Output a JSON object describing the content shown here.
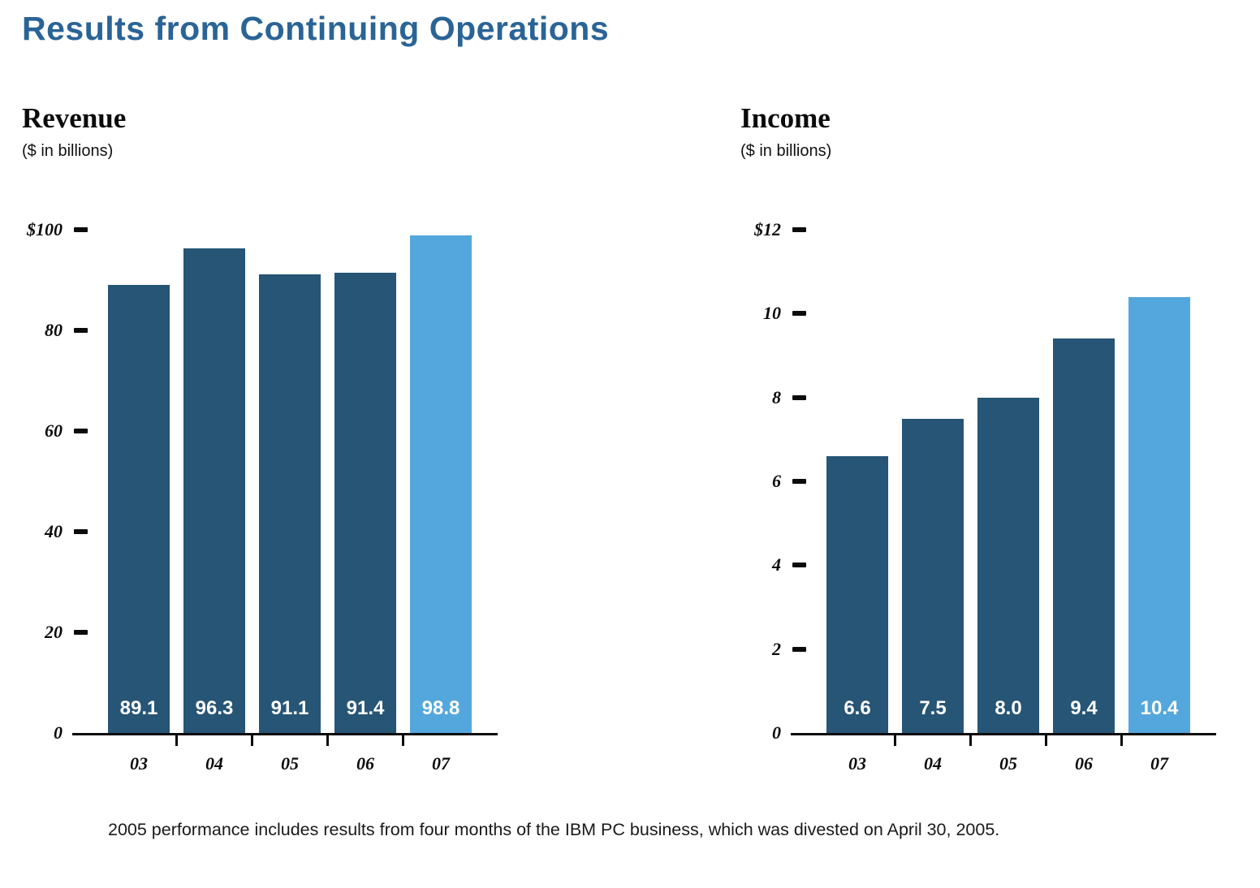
{
  "page": {
    "title": "Results from Continuing Operations",
    "footnote": "2005 performance includes results from four months of the IBM PC business, which was divested on April 30, 2005.",
    "accent_color": "#2a6496",
    "bar_color": "#265575",
    "highlight_bar_color": "#54a7dc"
  },
  "chart_data": [
    {
      "type": "bar",
      "title": "Revenue",
      "subtitle": "($ in billions)",
      "categories": [
        "03",
        "04",
        "05",
        "06",
        "07"
      ],
      "values": [
        89.1,
        96.3,
        91.1,
        91.4,
        98.8
      ],
      "value_labels": [
        "89.1",
        "96.3",
        "91.1",
        "91.4",
        "98.8"
      ],
      "ylim": [
        0,
        100
      ],
      "yticks": [
        {
          "label": "$100",
          "value": 100
        },
        {
          "label": "80",
          "value": 80
        },
        {
          "label": "60",
          "value": 60
        },
        {
          "label": "40",
          "value": 40
        },
        {
          "label": "20",
          "value": 20
        },
        {
          "label": "0",
          "value": 0
        }
      ],
      "highlight_index": 4,
      "grid": false,
      "legend": false
    },
    {
      "type": "bar",
      "title": "Income",
      "subtitle": "($ in billions)",
      "categories": [
        "03",
        "04",
        "05",
        "06",
        "07"
      ],
      "values": [
        6.6,
        7.5,
        8.0,
        9.4,
        10.4
      ],
      "value_labels": [
        "6.6",
        "7.5",
        "8.0",
        "9.4",
        "10.4"
      ],
      "ylim": [
        0,
        12
      ],
      "yticks": [
        {
          "label": "$12",
          "value": 12
        },
        {
          "label": "10",
          "value": 10
        },
        {
          "label": "8",
          "value": 8
        },
        {
          "label": "6",
          "value": 6
        },
        {
          "label": "4",
          "value": 4
        },
        {
          "label": "2",
          "value": 2
        },
        {
          "label": "0",
          "value": 0
        }
      ],
      "highlight_index": 4,
      "grid": false,
      "legend": false
    }
  ]
}
